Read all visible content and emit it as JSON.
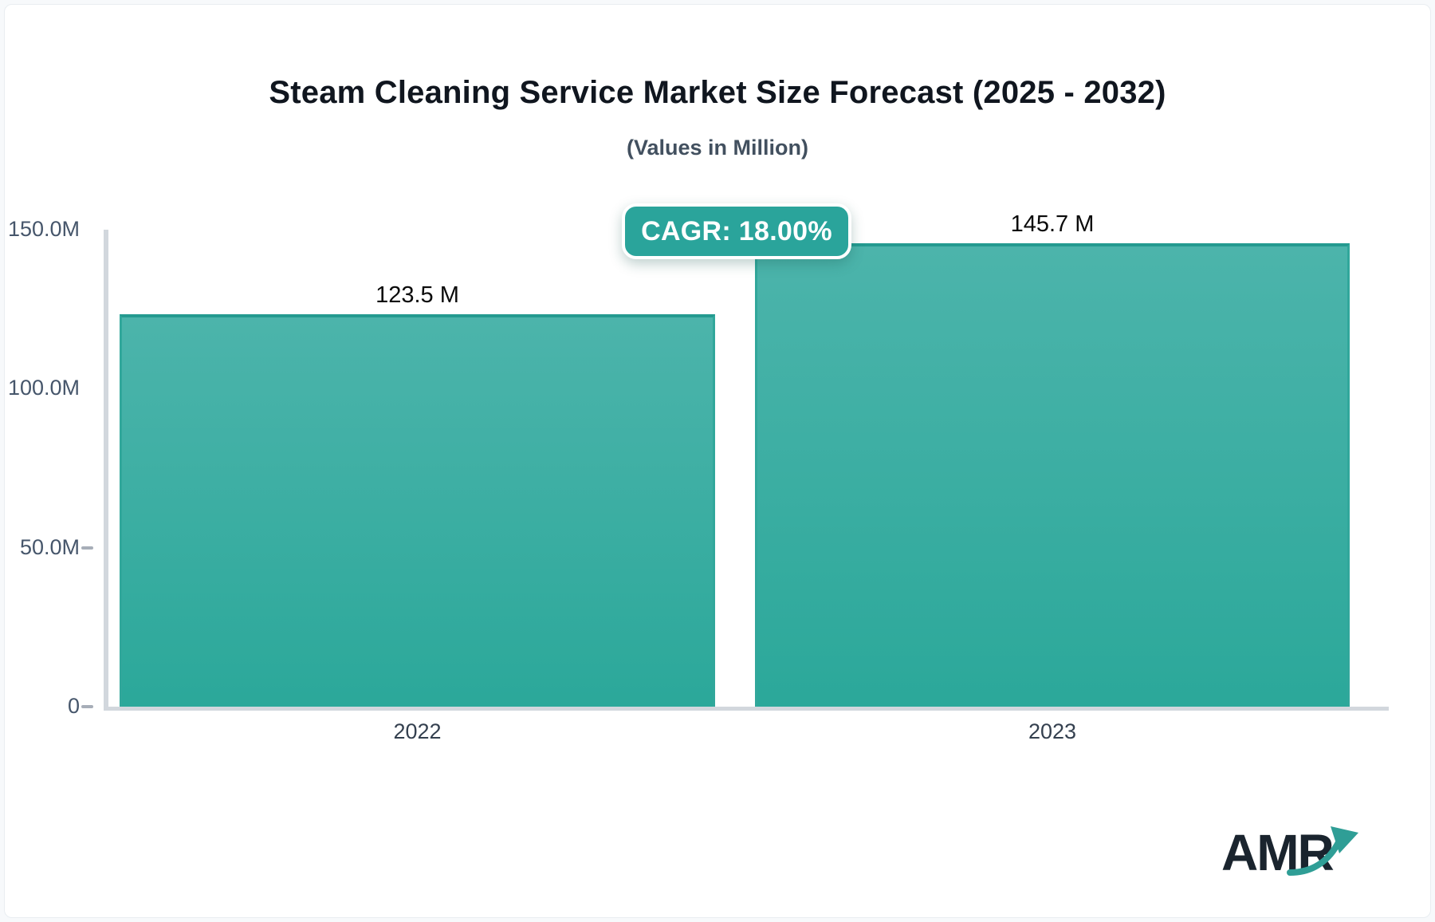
{
  "chart_data": {
    "type": "bar",
    "title": "Steam Cleaning Service Market Size Forecast (2025 - 2032)",
    "subtitle": "(Values in Million)",
    "cagr_label": "CAGR: 18.00%",
    "categories": [
      "2022",
      "2023"
    ],
    "values": [
      123.5,
      145.7
    ],
    "value_labels": [
      "123.5 M",
      "145.7 M"
    ],
    "unit": "Million",
    "ylim": [
      0,
      150
    ],
    "yticks": [
      {
        "label": "150.0M",
        "value": 150,
        "dash": false
      },
      {
        "label": "100.0M",
        "value": 100,
        "dash": false
      },
      {
        "label": "50.0M",
        "value": 50,
        "dash": true
      },
      {
        "label": "0",
        "value": 0,
        "dash": true
      }
    ],
    "grid": "off",
    "legend": "none",
    "colors": {
      "bar_top": "#4cb4ab",
      "bar_bottom": "#2ba89a",
      "bar_edge": "#249a90",
      "bar_side": "#31a79b",
      "badge_bg": "#2aa49b",
      "axis_line": "#d2d7dd",
      "tick_text": "#46566b",
      "value_text": "#0a0a0a",
      "title_text": "#10161f",
      "subtitle_text": "#42505f",
      "logo_text": "#1a242e",
      "logo_arrow": "#2f9e96"
    }
  },
  "logo": {
    "text": "AMR"
  }
}
